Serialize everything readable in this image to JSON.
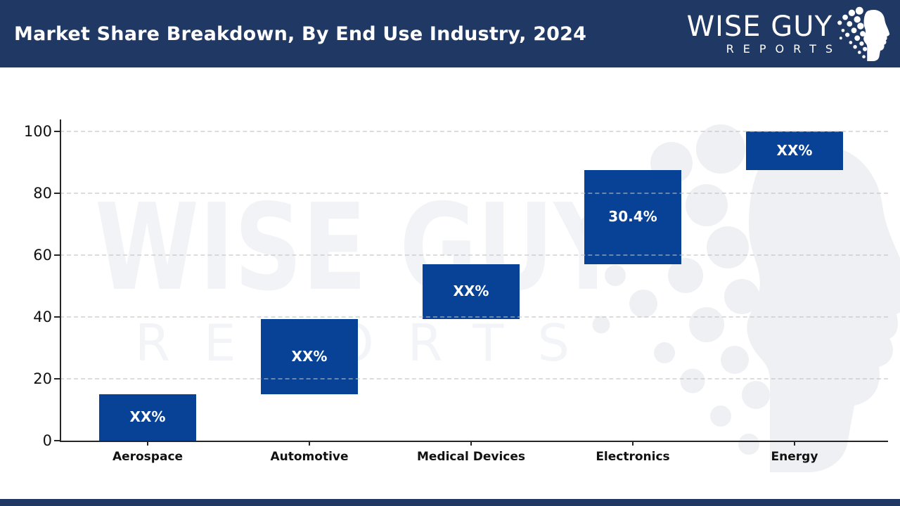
{
  "header": {
    "title": "Market Share Breakdown, By End Use Industry, 2024",
    "logo": {
      "line1": "WISE GUY",
      "line2": "REPORTS"
    }
  },
  "watermark": {
    "line1": "WISE GUY",
    "line2": "REPORTS"
  },
  "colors": {
    "header_bg": "#1f3864",
    "footer_bg": "#1f3864",
    "bar": "#084296",
    "gridline": "#dcdcdc",
    "axis": "#262626",
    "tick_label": "#111111",
    "bar_label": "#ffffff",
    "watermark": "#f2f3f6"
  },
  "chart_data": {
    "type": "bar",
    "subtype": "floating-waterfall",
    "title": "Market Share Breakdown, By End Use Industry, 2024",
    "categories": [
      "Aerospace",
      "Automotive",
      "Medical Devices",
      "Electronics",
      "Energy"
    ],
    "bars": [
      {
        "category": "Aerospace",
        "start": 0,
        "end": 15,
        "label": "XX%"
      },
      {
        "category": "Automotive",
        "start": 15,
        "end": 39.3,
        "label": "XX%"
      },
      {
        "category": "Medical Devices",
        "start": 39.3,
        "end": 57,
        "label": "XX%"
      },
      {
        "category": "Electronics",
        "start": 57,
        "end": 87.4,
        "label": "30.4%"
      },
      {
        "category": "Energy",
        "start": 87.4,
        "end": 100,
        "label": "XX%"
      }
    ],
    "xlabel": "",
    "ylabel": "",
    "ylim": [
      0,
      100
    ],
    "yticks": [
      0,
      20,
      40,
      60,
      80,
      100
    ],
    "grid": "horizontal-dashed",
    "legend": "none"
  }
}
